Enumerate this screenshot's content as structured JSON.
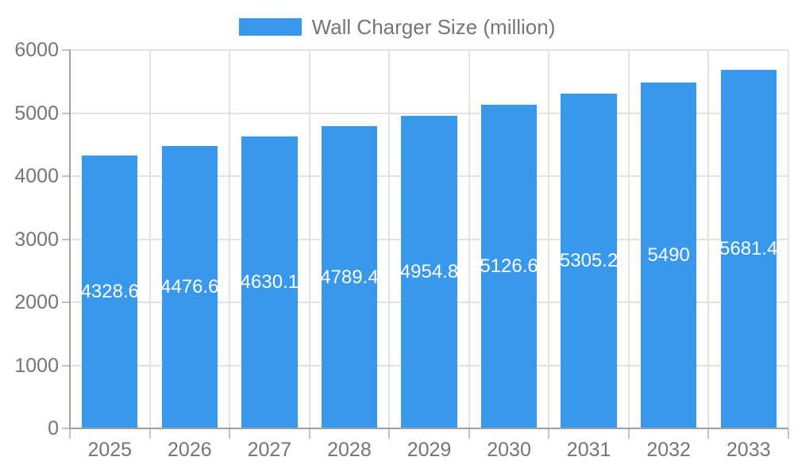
{
  "chart_data": {
    "type": "bar",
    "title": "Wall Charger Size (million)",
    "legend": {
      "label": "Wall Charger Size (million)",
      "position": "top"
    },
    "categories": [
      "2025",
      "2026",
      "2027",
      "2028",
      "2029",
      "2030",
      "2031",
      "2032",
      "2033"
    ],
    "series": [
      {
        "name": "Wall Charger Size (million)",
        "values": [
          4328.6,
          4476.6,
          4630.1,
          4789.4,
          4954.8,
          5126.6,
          5305.2,
          5490,
          5681.4
        ]
      }
    ],
    "bar_labels": [
      "4328.6",
      "4476.6",
      "4630.1",
      "4789.4",
      "4954.8",
      "5126.6",
      "5305.2",
      "5490",
      "5681.4"
    ],
    "xlabel": "",
    "ylabel": "",
    "ylim": [
      0,
      6000
    ],
    "y_ticks": [
      0,
      1000,
      2000,
      3000,
      4000,
      5000,
      6000
    ],
    "grid": true,
    "legend_position": "top-center",
    "colors": {
      "bar": "#3898EC",
      "grid_line": "#e2e2e2",
      "axis_line": "#9e9e9e",
      "tick_mark": "#c2c2c2",
      "axis_text": "#757575",
      "bar_label_text": "#ffffff",
      "background": "#ffffff"
    }
  }
}
